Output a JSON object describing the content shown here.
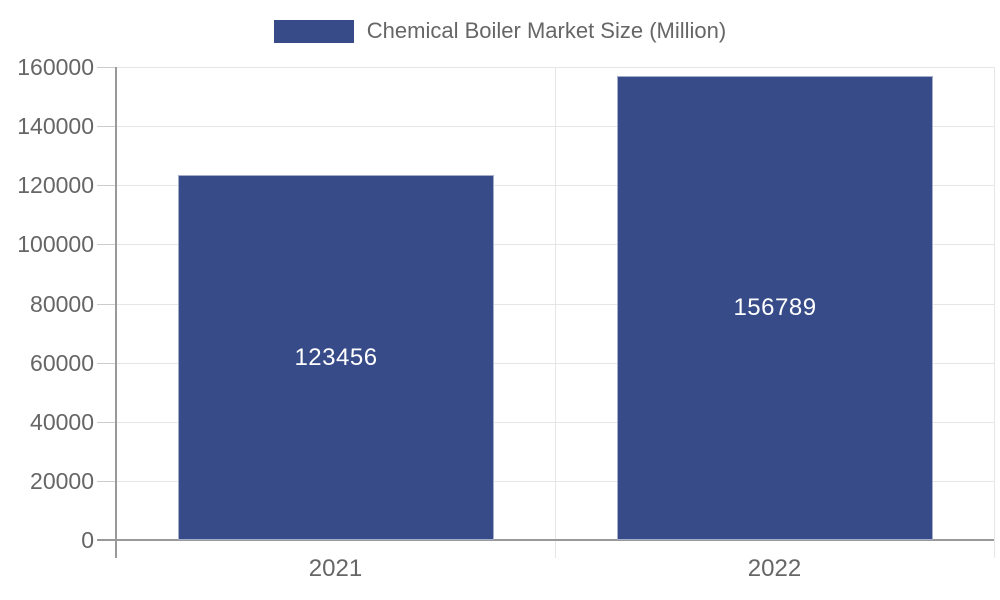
{
  "chart_data": {
    "type": "bar",
    "title": "",
    "legend_position": "top-center",
    "categories": [
      "2021",
      "2022"
    ],
    "series": [
      {
        "name": "Chemical Boiler Market Size (Million)",
        "values": [
          123456,
          156789
        ]
      }
    ],
    "data_labels": [
      "123456",
      "156789"
    ],
    "xlabel": "",
    "ylabel": "",
    "ylim": [
      0,
      160000
    ],
    "yticks": [
      0,
      20000,
      40000,
      60000,
      80000,
      100000,
      120000,
      140000,
      160000
    ],
    "ytick_labels": [
      "0",
      "20000",
      "40000",
      "60000",
      "80000",
      "100000",
      "120000",
      "140000",
      "160000"
    ],
    "grid": true,
    "colors": {
      "bar": "#364b87",
      "axis_line": "#999999",
      "gridline": "#e6e6e6",
      "boundary_tick": "#cccccc",
      "tick_label_text": "#666666",
      "legend_text": "#666666",
      "data_label_text": "#ffffff",
      "background": "#ffffff"
    }
  }
}
